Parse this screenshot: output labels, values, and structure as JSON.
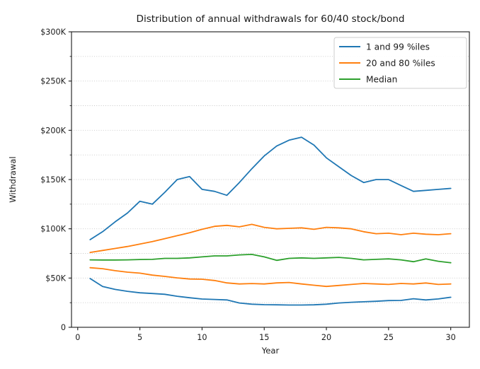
{
  "figure": {
    "background": "#ffffff",
    "text_color": "#1a1a1a",
    "spine_color": "#1a1a1a",
    "grid_color": "#c7c7c7"
  },
  "chart_data": {
    "type": "line",
    "title": "Distribution of annual withdrawals for 60/40 stock/bond",
    "xlabel": "Year",
    "ylabel": "Withdrawal",
    "units": "USD thousands",
    "xlim": [
      -0.5,
      31.5
    ],
    "ylim": [
      0,
      300
    ],
    "grid": {
      "axis": "y",
      "interval": 25,
      "style": "dotted"
    },
    "xticks": [
      0,
      5,
      10,
      15,
      20,
      25,
      30
    ],
    "yticks": [
      {
        "value": 0,
        "label": "0"
      },
      {
        "value": 50,
        "label": "$50K"
      },
      {
        "value": 100,
        "label": "$100K"
      },
      {
        "value": 150,
        "label": "$150K"
      },
      {
        "value": 200,
        "label": "$200K"
      },
      {
        "value": 250,
        "label": "$250K"
      },
      {
        "value": 300,
        "label": "$300K"
      }
    ],
    "x": [
      1,
      2,
      3,
      4,
      5,
      6,
      7,
      8,
      9,
      10,
      11,
      12,
      13,
      14,
      15,
      16,
      17,
      18,
      19,
      20,
      21,
      22,
      23,
      24,
      25,
      26,
      27,
      28,
      29,
      30
    ],
    "series": [
      {
        "label": "1 and 99 %iles",
        "color": "#1f77b4",
        "lines": {
          "percentile_99": [
            89,
            97,
            107,
            116,
            128,
            125,
            137,
            150,
            153,
            140,
            138,
            134,
            147,
            161,
            174,
            184,
            190,
            193,
            185,
            172,
            163,
            154,
            147,
            150,
            150,
            144,
            138,
            139,
            140,
            141
          ],
          "percentile_1": [
            49.5,
            41.5,
            38.5,
            36.5,
            35,
            34.3,
            33.5,
            31.5,
            30,
            28.7,
            28.3,
            27.8,
            24.7,
            23.5,
            23,
            22.8,
            22.6,
            22.6,
            22.8,
            23.5,
            24.7,
            25.4,
            25.9,
            26.4,
            27.1,
            27.3,
            29,
            27.8,
            28.8,
            30.5
          ]
        }
      },
      {
        "label": "20 and 80 %iles",
        "color": "#ff7f0e",
        "lines": {
          "percentile_80": [
            76,
            78,
            80,
            82,
            84.5,
            87,
            90,
            93,
            96,
            99.5,
            102.5,
            103.5,
            102,
            104.5,
            101.5,
            100,
            100.5,
            101,
            99.5,
            101.5,
            101,
            100,
            97,
            95,
            95.5,
            94,
            95.5,
            94.5,
            94,
            95
          ],
          "percentile_20": [
            60.5,
            59.5,
            57.5,
            56,
            55,
            53,
            51.7,
            50.2,
            49,
            48.8,
            47.5,
            45.1,
            44,
            44.4,
            44,
            45.1,
            45.5,
            44,
            42.7,
            41.5,
            42.5,
            43.5,
            44.5,
            44,
            43.5,
            44.5,
            44,
            45,
            43.5,
            44
          ]
        }
      },
      {
        "label": "Median",
        "color": "#2ca02c",
        "lines": {
          "median": [
            68.5,
            68.3,
            68.3,
            68.5,
            68.8,
            69,
            70,
            70,
            70.5,
            71.5,
            72.5,
            72.5,
            73.5,
            74,
            71.5,
            68,
            70,
            70.5,
            70,
            70.5,
            71,
            70,
            68.5,
            69,
            69.5,
            68.5,
            66.6,
            69.5,
            67,
            65.5
          ]
        }
      }
    ],
    "legend": {
      "position": "upper right"
    }
  }
}
